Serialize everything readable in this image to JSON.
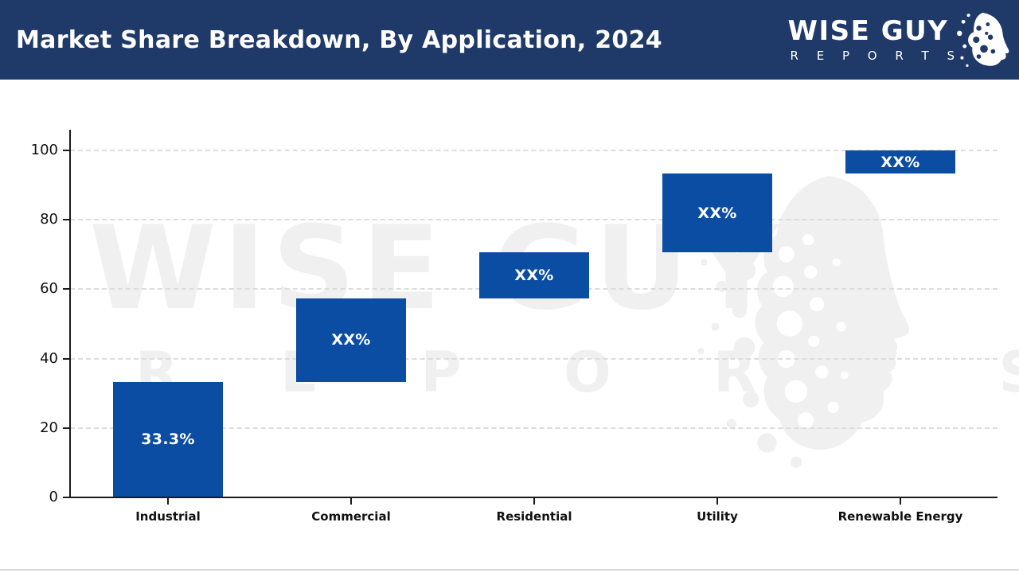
{
  "header": {
    "title": "Market Share Breakdown, By Application, 2024",
    "logo": {
      "brand_line1": "WISE GUY",
      "brand_line2": "R E P O R T S"
    }
  },
  "watermark": {
    "line1": "WISE GUY",
    "line2": "R E P O R T S"
  },
  "colors": {
    "header_bg": "#1f3a68",
    "bar": "#0b4da2",
    "bar_label": "#ffffff",
    "axis": "#1a1a1a",
    "gridline": "#dcdcdc",
    "watermark": "#f0f0f1",
    "bottom_border": "#d8d8d8"
  },
  "chart_data": {
    "type": "bar",
    "subtype": "waterfall",
    "title": "Market Share Breakdown, By Application, 2024",
    "xlabel": "",
    "ylabel": "",
    "categories": [
      "Industrial",
      "Commercial",
      "Residential",
      "Utility",
      "Renewable Energy"
    ],
    "segments": [
      {
        "category": "Industrial",
        "start": 0,
        "end": 33.3,
        "label": "33.3%"
      },
      {
        "category": "Commercial",
        "start": 33.3,
        "end": 57.4,
        "label": "XX%"
      },
      {
        "category": "Residential",
        "start": 57.4,
        "end": 70.7,
        "label": "XX%"
      },
      {
        "category": "Utility",
        "start": 70.7,
        "end": 93.3,
        "label": "XX%"
      },
      {
        "category": "Renewable Energy",
        "start": 93.3,
        "end": 100,
        "label": "XX%"
      }
    ],
    "yticks": [
      0,
      20,
      40,
      60,
      80,
      100
    ],
    "ylim": [
      0,
      106
    ],
    "grid": "dashed-horizontal",
    "legend": "none",
    "bar_color": "#0b4da2"
  }
}
